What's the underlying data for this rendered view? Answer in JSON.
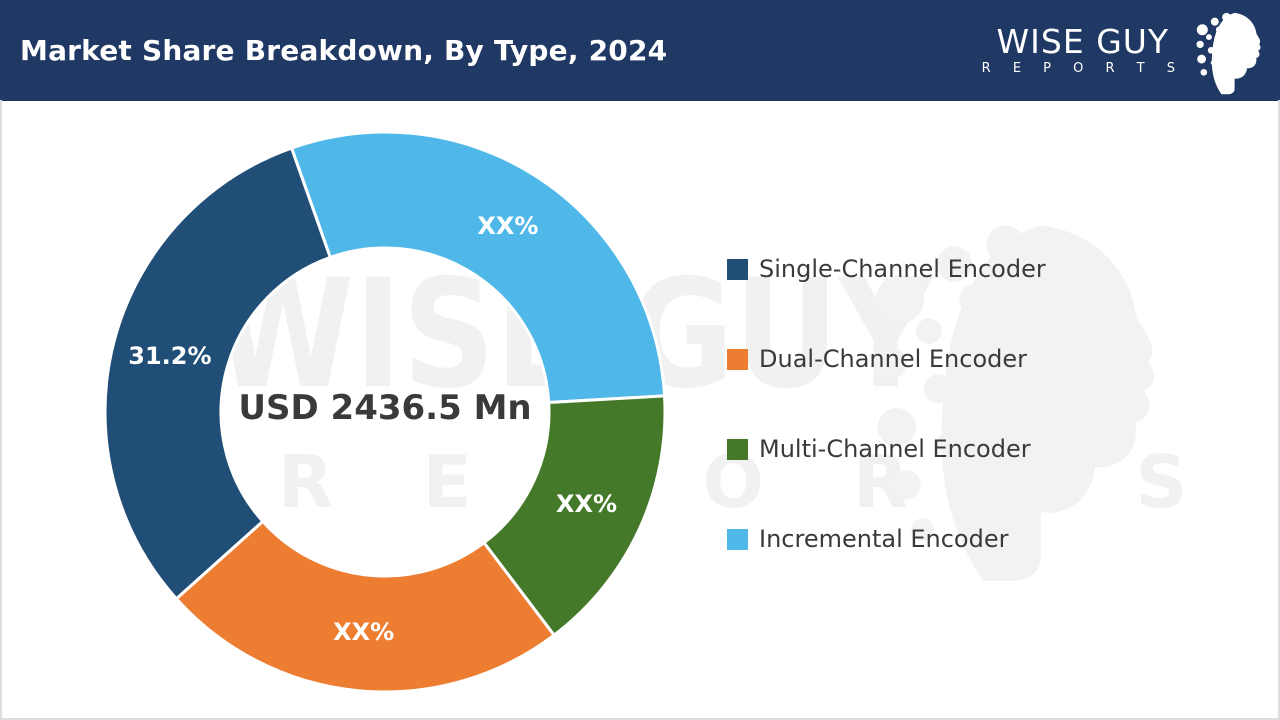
{
  "header": {
    "title": "Market Share Breakdown, By Type, 2024",
    "background_color": "#203864",
    "logo": {
      "name": "WISE GUY",
      "sub": "R E P O R T S"
    }
  },
  "watermark": {
    "line1": "WISE GUY",
    "line2": "R E P O R T S"
  },
  "chart_data": {
    "type": "pie",
    "subtype": "donut",
    "title": "Market Share Breakdown, By Type, 2024",
    "center_label": "USD 2436.5 Mn",
    "start_angle_deg": -19.5,
    "slices": [
      {
        "label": "Incremental Encoder",
        "value_pct": 29.5,
        "display_label": "XX%",
        "color": "#4FB8E8"
      },
      {
        "label": "Multi-Channel Encoder",
        "value_pct": 15.6,
        "display_label": "XX%",
        "color": "#44792A"
      },
      {
        "label": "Dual-Channel Encoder",
        "value_pct": 23.7,
        "display_label": "XX%",
        "color": "#ED7D31"
      },
      {
        "label": "Single-Channel Encoder",
        "value_pct": 31.2,
        "display_label": "31.2%",
        "color": "#204E76"
      }
    ],
    "legend_order": [
      3,
      2,
      1,
      0
    ],
    "legend_position": "right",
    "label_color": "#ffffff",
    "separator_color": "#ffffff"
  }
}
